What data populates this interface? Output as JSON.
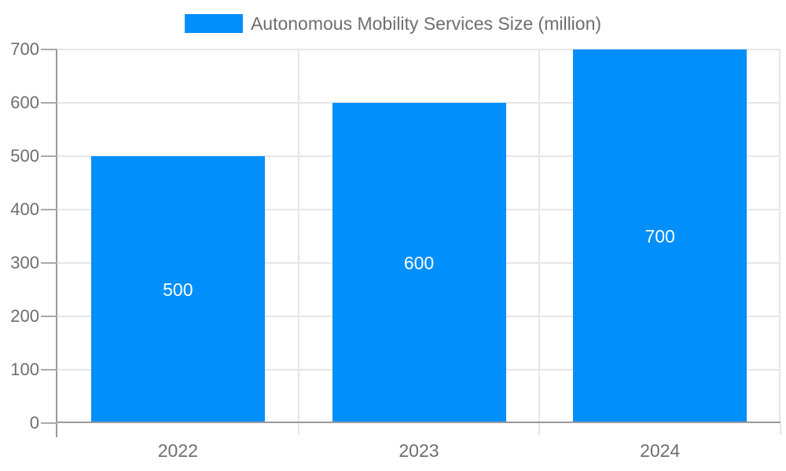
{
  "chart_data": {
    "type": "bar",
    "title": "Autonomous Mobility Services Size (million)",
    "categories": [
      "2022",
      "2023",
      "2024"
    ],
    "series": [
      {
        "name": "Autonomous Mobility Services Size (million)",
        "values": [
          500,
          600,
          700
        ]
      }
    ],
    "bar_value_labels": [
      "500",
      "600",
      "700"
    ],
    "xlabel": "",
    "ylabel": "",
    "ylim": [
      0,
      700
    ],
    "ytick_step": 100,
    "ytick_labels": [
      "0",
      "100",
      "200",
      "300",
      "400",
      "500",
      "600",
      "700"
    ],
    "grid": true,
    "legend_position": "top",
    "colors": {
      "bar": "#008FFB",
      "bar_label_text": "#ffffff",
      "axis_text": "#6e6e6e",
      "legend_text": "#6e6e6e",
      "gridline": "#e6e6e6",
      "axis_line": "#999999",
      "tick": "#aaaaaa",
      "background": "#ffffff"
    }
  }
}
